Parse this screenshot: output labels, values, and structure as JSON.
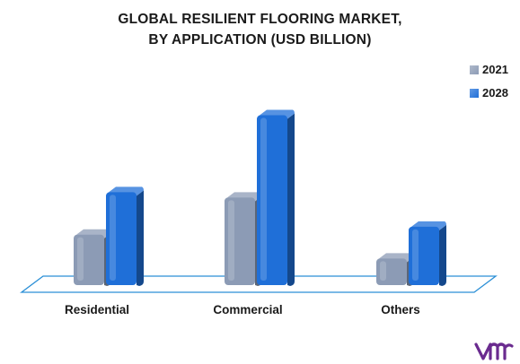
{
  "chart_data": {
    "type": "bar",
    "title_lines": [
      "GLOBAL RESILIENT FLOORING MARKET,",
      "BY APPLICATION (USD BILLION)"
    ],
    "categories": [
      "Residential",
      "Commercial",
      "Others"
    ],
    "series": [
      {
        "name": "2021",
        "values": [
          19,
          33,
          10
        ],
        "color": "#8c9bb5"
      },
      {
        "name": "2028",
        "values": [
          35,
          64,
          22
        ],
        "color": "#1f6fd8"
      }
    ],
    "ylim": [
      0,
      70
    ],
    "grid": false,
    "legend_position": "top-right"
  },
  "colors": {
    "floor_stroke": "#2a8fd6",
    "logo": "#6a2b8f"
  }
}
